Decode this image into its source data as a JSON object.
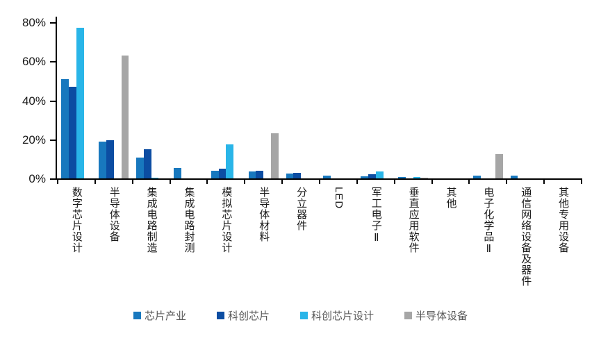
{
  "chart_data": {
    "type": "bar",
    "title": "",
    "xlabel": "",
    "ylabel": "",
    "ylim": [
      0,
      80
    ],
    "y_ticks": [
      {
        "value": 0,
        "label": "0%"
      },
      {
        "value": 20,
        "label": "20%"
      },
      {
        "value": 40,
        "label": "40%"
      },
      {
        "value": 60,
        "label": "60%"
      },
      {
        "value": 80,
        "label": "80%"
      }
    ],
    "grid": "off",
    "legend_position": "bottom-center",
    "categories": [
      "数字芯片设计",
      "半导体设备",
      "集成电路制造",
      "集成电路封测",
      "模拟芯片设计",
      "半导体材料",
      "分立器件",
      "LED",
      "军工电子Ⅱ",
      "垂直应用软件",
      "其他",
      "电子化学品Ⅱ",
      "通信网络设备及器件",
      "其他专用设备"
    ],
    "series": [
      {
        "name": "芯片产业",
        "color": "#1878BE",
        "values": [
          51,
          19,
          10.5,
          5.5,
          4,
          3.5,
          2.5,
          1.5,
          1,
          0.7,
          0,
          1.5,
          1.3,
          0
        ]
      },
      {
        "name": "科创芯片",
        "color": "#0C4DA2",
        "values": [
          47,
          19.5,
          15,
          0,
          5,
          4,
          3,
          0,
          2,
          0,
          0,
          0,
          0,
          0
        ]
      },
      {
        "name": "科创芯片设计",
        "color": "#29B5E8",
        "values": [
          77,
          0,
          0.5,
          0,
          17.5,
          0,
          0,
          0,
          3.5,
          0.6,
          0,
          0,
          0,
          0
        ]
      },
      {
        "name": "半导体设备",
        "color": "#A6A6A6",
        "values": [
          0,
          63,
          0,
          0,
          0,
          23,
          0,
          0,
          0,
          0.4,
          0,
          12.5,
          0,
          0
        ]
      }
    ],
    "colors": {
      "axis": "#000000",
      "tick_label": "#1a1a1a",
      "legend_text": "#595959",
      "background": "#ffffff"
    }
  }
}
